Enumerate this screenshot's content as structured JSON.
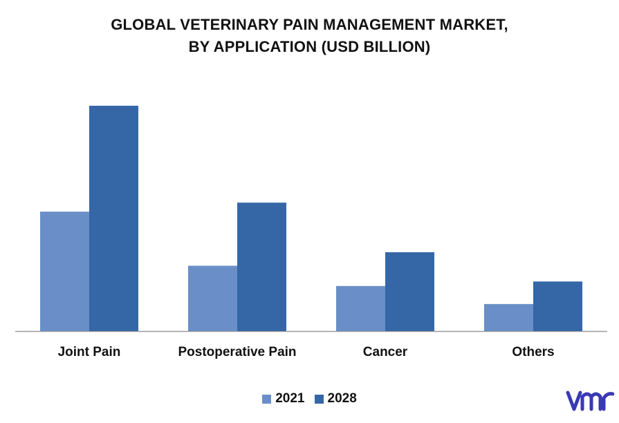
{
  "title_line1": "GLOBAL VETERINARY PAIN MANAGEMENT MARKET,",
  "title_line2": "BY APPLICATION (USD BILLION)",
  "colors": {
    "s2021": "#6a8fc8",
    "s2028": "#3566a6",
    "axis": "#9a9a9a",
    "logo": "#3a39b4"
  },
  "logo_icon": "vmr-logo-icon",
  "chart_data": {
    "type": "bar",
    "title": "GLOBAL VETERINARY PAIN MANAGEMENT MARKET, BY APPLICATION (USD BILLION)",
    "xlabel": "",
    "ylabel": "",
    "categories": [
      "Joint Pain",
      "Postoperative Pain",
      "Cancer",
      "Others"
    ],
    "series": [
      {
        "name": "2021",
        "values": [
          0.53,
          0.29,
          0.2,
          0.12
        ]
      },
      {
        "name": "2028",
        "values": [
          1.0,
          0.57,
          0.35,
          0.22
        ]
      }
    ],
    "ylim": [
      0,
      1.0
    ],
    "grid": false,
    "y_axis_visible": false,
    "legend": "bottom"
  }
}
